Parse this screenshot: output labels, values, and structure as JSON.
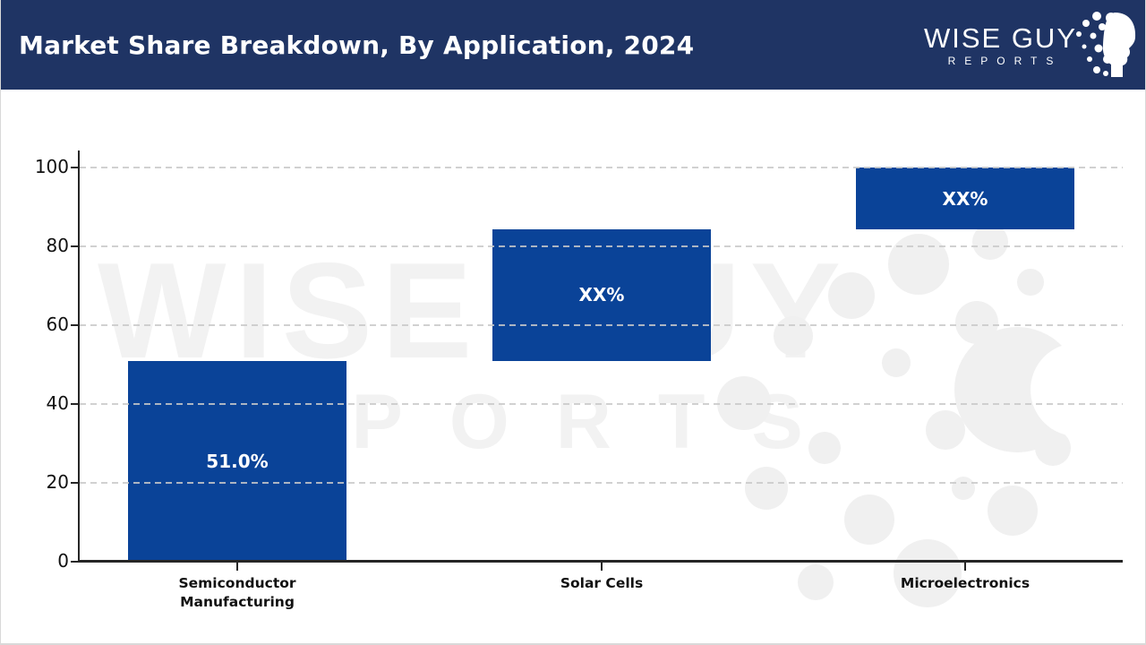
{
  "header": {
    "title": "Market Share Breakdown, By Application, 2024",
    "bg_color": "#1f3464",
    "logo": {
      "primary": "WISE GUY",
      "secondary": "REPORTS"
    }
  },
  "watermark": {
    "primary": "WISE GUY",
    "secondary": "REPORTS"
  },
  "chart_data": {
    "type": "bar",
    "subtype": "floating-segment-breakdown",
    "title": "Market Share Breakdown, By Application, 2024",
    "categories": [
      "Semiconductor\nManufacturing",
      "Solar Cells",
      "Microelectronics"
    ],
    "segments": [
      {
        "category": "Semiconductor Manufacturing",
        "start": 0,
        "end": 51.0,
        "label": "51.0%"
      },
      {
        "category": "Solar Cells",
        "start": 51.0,
        "end": 84.3,
        "label": "XX%"
      },
      {
        "category": "Microelectronics",
        "start": 84.3,
        "end": 100,
        "label": "XX%"
      }
    ],
    "yticks": [
      0,
      20,
      40,
      60,
      80,
      100
    ],
    "ylim": [
      0,
      104
    ],
    "xlabel": "",
    "ylabel": "",
    "grid": "dashed-horizontal",
    "legend": "none",
    "colors": {
      "bar": "#0a4398",
      "bar_label": "#ffffff",
      "grid": "#c9c9c9",
      "axis": "#262626",
      "header_bg": "#1f3464",
      "watermark": "#f2f2f2"
    }
  }
}
